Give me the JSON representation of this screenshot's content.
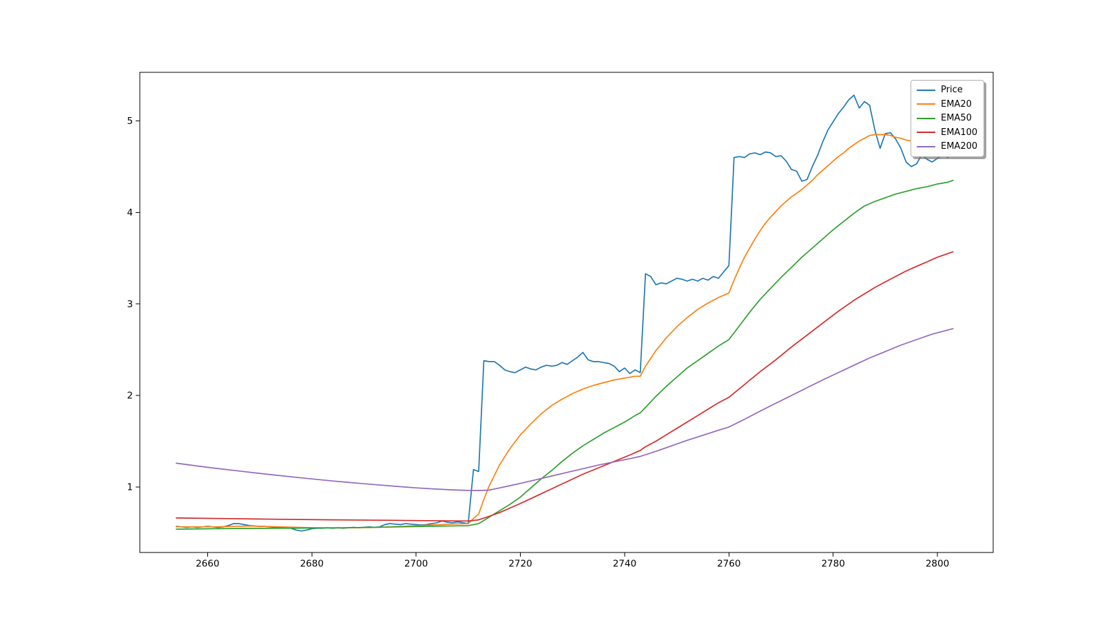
{
  "chart_data": {
    "type": "line",
    "title": "",
    "xlabel": "",
    "ylabel": "",
    "grid": false,
    "background": "#ffffff",
    "spine_color": "#000000",
    "xlim": [
      2647.0,
      2810.7
    ],
    "ylim": [
      0.285,
      5.53
    ],
    "xticks": [
      2660,
      2680,
      2700,
      2720,
      2740,
      2760,
      2780,
      2800
    ],
    "yticks": [
      1,
      2,
      3,
      4,
      5
    ],
    "legend": {
      "position": "upper right"
    },
    "series": [
      {
        "name": "Price",
        "color": "#1f77b4",
        "x_start": 2654,
        "x_step": 1,
        "values": [
          0.57,
          0.565,
          0.56,
          0.565,
          0.56,
          0.565,
          0.57,
          0.565,
          0.56,
          0.565,
          0.58,
          0.6,
          0.6,
          0.59,
          0.58,
          0.575,
          0.57,
          0.57,
          0.565,
          0.56,
          0.56,
          0.555,
          0.55,
          0.53,
          0.52,
          0.53,
          0.545,
          0.55,
          0.55,
          0.555,
          0.55,
          0.555,
          0.55,
          0.555,
          0.56,
          0.555,
          0.56,
          0.565,
          0.56,
          0.565,
          0.59,
          0.6,
          0.595,
          0.59,
          0.6,
          0.595,
          0.59,
          0.585,
          0.59,
          0.6,
          0.61,
          0.63,
          0.615,
          0.61,
          0.62,
          0.61,
          0.6,
          1.19,
          1.17,
          2.38,
          2.37,
          2.37,
          2.33,
          2.28,
          2.26,
          2.25,
          2.28,
          2.31,
          2.29,
          2.28,
          2.31,
          2.33,
          2.32,
          2.33,
          2.36,
          2.34,
          2.38,
          2.42,
          2.47,
          2.39,
          2.37,
          2.37,
          2.36,
          2.35,
          2.32,
          2.26,
          2.3,
          2.24,
          2.28,
          2.25,
          3.33,
          3.3,
          3.21,
          3.23,
          3.22,
          3.25,
          3.28,
          3.27,
          3.25,
          3.27,
          3.25,
          3.28,
          3.26,
          3.3,
          3.28,
          3.35,
          3.42,
          4.6,
          4.61,
          4.6,
          4.64,
          4.65,
          4.63,
          4.66,
          4.65,
          4.61,
          4.62,
          4.56,
          4.47,
          4.45,
          4.34,
          4.36,
          4.5,
          4.62,
          4.77,
          4.9,
          4.99,
          5.08,
          5.15,
          5.23,
          5.28,
          5.14,
          5.21,
          5.17,
          4.9,
          4.7,
          4.86,
          4.87,
          4.8,
          4.7,
          4.55,
          4.5,
          4.53,
          4.63,
          4.58,
          4.55,
          4.59,
          4.63,
          4.6,
          4.66
        ]
      },
      {
        "name": "EMA20",
        "color": "#ff7f0e",
        "points": [
          [
            2654,
            0.565
          ],
          [
            2662,
            0.566
          ],
          [
            2668,
            0.575
          ],
          [
            2674,
            0.565
          ],
          [
            2680,
            0.556
          ],
          [
            2686,
            0.554
          ],
          [
            2692,
            0.558
          ],
          [
            2698,
            0.572
          ],
          [
            2703,
            0.585
          ],
          [
            2707,
            0.596
          ],
          [
            2710,
            0.601
          ],
          [
            2711,
            0.657
          ],
          [
            2712,
            0.706
          ],
          [
            2713,
            0.865
          ],
          [
            2714,
            1.01
          ],
          [
            2716,
            1.24
          ],
          [
            2718,
            1.42
          ],
          [
            2720,
            1.57
          ],
          [
            2722,
            1.69
          ],
          [
            2724,
            1.8
          ],
          [
            2726,
            1.89
          ],
          [
            2728,
            1.96
          ],
          [
            2730,
            2.02
          ],
          [
            2732,
            2.07
          ],
          [
            2734,
            2.11
          ],
          [
            2736,
            2.14
          ],
          [
            2738,
            2.17
          ],
          [
            2740,
            2.19
          ],
          [
            2742,
            2.21
          ],
          [
            2743,
            2.21
          ],
          [
            2744,
            2.32
          ],
          [
            2746,
            2.49
          ],
          [
            2748,
            2.63
          ],
          [
            2750,
            2.75
          ],
          [
            2752,
            2.85
          ],
          [
            2754,
            2.94
          ],
          [
            2756,
            3.01
          ],
          [
            2758,
            3.07
          ],
          [
            2760,
            3.12
          ],
          [
            2761,
            3.26
          ],
          [
            2762,
            3.39
          ],
          [
            2763,
            3.51
          ],
          [
            2764,
            3.61
          ],
          [
            2765,
            3.71
          ],
          [
            2766,
            3.8
          ],
          [
            2767,
            3.88
          ],
          [
            2768,
            3.95
          ],
          [
            2769,
            4.01
          ],
          [
            2770,
            4.07
          ],
          [
            2771,
            4.12
          ],
          [
            2772,
            4.17
          ],
          [
            2773,
            4.21
          ],
          [
            2774,
            4.25
          ],
          [
            2775,
            4.3
          ],
          [
            2776,
            4.35
          ],
          [
            2777,
            4.41
          ],
          [
            2778,
            4.46
          ],
          [
            2779,
            4.51
          ],
          [
            2780,
            4.56
          ],
          [
            2781,
            4.61
          ],
          [
            2782,
            4.65
          ],
          [
            2783,
            4.7
          ],
          [
            2784,
            4.74
          ],
          [
            2785,
            4.78
          ],
          [
            2786,
            4.81
          ],
          [
            2787,
            4.84
          ],
          [
            2788,
            4.85
          ],
          [
            2789,
            4.85
          ],
          [
            2790,
            4.85
          ],
          [
            2791,
            4.84
          ],
          [
            2792,
            4.82
          ],
          [
            2793,
            4.81
          ],
          [
            2794,
            4.79
          ],
          [
            2795,
            4.78
          ],
          [
            2797,
            4.77
          ],
          [
            2799,
            4.76
          ],
          [
            2801,
            4.77
          ],
          [
            2803,
            4.78
          ]
        ]
      },
      {
        "name": "EMA50",
        "color": "#2ca02c",
        "points": [
          [
            2654,
            0.54
          ],
          [
            2662,
            0.545
          ],
          [
            2670,
            0.549
          ],
          [
            2678,
            0.551
          ],
          [
            2686,
            0.555
          ],
          [
            2694,
            0.562
          ],
          [
            2702,
            0.571
          ],
          [
            2708,
            0.576
          ],
          [
            2710,
            0.578
          ],
          [
            2712,
            0.6
          ],
          [
            2714,
            0.67
          ],
          [
            2716,
            0.74
          ],
          [
            2718,
            0.81
          ],
          [
            2720,
            0.89
          ],
          [
            2722,
            0.99
          ],
          [
            2724,
            1.09
          ],
          [
            2726,
            1.18
          ],
          [
            2728,
            1.28
          ],
          [
            2730,
            1.37
          ],
          [
            2732,
            1.45
          ],
          [
            2734,
            1.52
          ],
          [
            2736,
            1.59
          ],
          [
            2738,
            1.65
          ],
          [
            2740,
            1.71
          ],
          [
            2742,
            1.78
          ],
          [
            2743,
            1.81
          ],
          [
            2744,
            1.87
          ],
          [
            2746,
            1.99
          ],
          [
            2748,
            2.1
          ],
          [
            2750,
            2.2
          ],
          [
            2752,
            2.3
          ],
          [
            2754,
            2.38
          ],
          [
            2756,
            2.46
          ],
          [
            2758,
            2.54
          ],
          [
            2760,
            2.61
          ],
          [
            2762,
            2.76
          ],
          [
            2764,
            2.91
          ],
          [
            2766,
            3.05
          ],
          [
            2768,
            3.17
          ],
          [
            2770,
            3.29
          ],
          [
            2772,
            3.4
          ],
          [
            2774,
            3.51
          ],
          [
            2776,
            3.61
          ],
          [
            2778,
            3.71
          ],
          [
            2780,
            3.81
          ],
          [
            2782,
            3.9
          ],
          [
            2784,
            3.99
          ],
          [
            2786,
            4.07
          ],
          [
            2788,
            4.12
          ],
          [
            2790,
            4.16
          ],
          [
            2792,
            4.2
          ],
          [
            2794,
            4.23
          ],
          [
            2796,
            4.26
          ],
          [
            2798,
            4.28
          ],
          [
            2800,
            4.31
          ],
          [
            2802,
            4.33
          ],
          [
            2803,
            4.35
          ]
        ]
      },
      {
        "name": "EMA100",
        "color": "#d62728",
        "points": [
          [
            2654,
            0.662
          ],
          [
            2664,
            0.655
          ],
          [
            2674,
            0.648
          ],
          [
            2684,
            0.642
          ],
          [
            2694,
            0.637
          ],
          [
            2702,
            0.633
          ],
          [
            2708,
            0.63
          ],
          [
            2710,
            0.629
          ],
          [
            2712,
            0.642
          ],
          [
            2714,
            0.68
          ],
          [
            2716,
            0.72
          ],
          [
            2718,
            0.77
          ],
          [
            2720,
            0.82
          ],
          [
            2723,
            0.9
          ],
          [
            2726,
            0.98
          ],
          [
            2729,
            1.06
          ],
          [
            2732,
            1.14
          ],
          [
            2735,
            1.21
          ],
          [
            2738,
            1.28
          ],
          [
            2741,
            1.35
          ],
          [
            2743,
            1.4
          ],
          [
            2744,
            1.44
          ],
          [
            2746,
            1.5
          ],
          [
            2748,
            1.57
          ],
          [
            2750,
            1.64
          ],
          [
            2752,
            1.71
          ],
          [
            2754,
            1.78
          ],
          [
            2756,
            1.85
          ],
          [
            2758,
            1.92
          ],
          [
            2760,
            1.98
          ],
          [
            2763,
            2.12
          ],
          [
            2766,
            2.26
          ],
          [
            2769,
            2.39
          ],
          [
            2772,
            2.53
          ],
          [
            2775,
            2.66
          ],
          [
            2778,
            2.79
          ],
          [
            2781,
            2.92
          ],
          [
            2784,
            3.04
          ],
          [
            2786,
            3.11
          ],
          [
            2788,
            3.18
          ],
          [
            2790,
            3.24
          ],
          [
            2792,
            3.3
          ],
          [
            2794,
            3.36
          ],
          [
            2796,
            3.41
          ],
          [
            2798,
            3.46
          ],
          [
            2800,
            3.51
          ],
          [
            2802,
            3.55
          ],
          [
            2803,
            3.57
          ]
        ]
      },
      {
        "name": "EMA200",
        "color": "#9467bd",
        "points": [
          [
            2654,
            1.26
          ],
          [
            2660,
            1.215
          ],
          [
            2666,
            1.175
          ],
          [
            2672,
            1.136
          ],
          [
            2678,
            1.1
          ],
          [
            2684,
            1.066
          ],
          [
            2690,
            1.036
          ],
          [
            2696,
            1.008
          ],
          [
            2700,
            0.991
          ],
          [
            2704,
            0.977
          ],
          [
            2707,
            0.969
          ],
          [
            2710,
            0.963
          ],
          [
            2712,
            0.962
          ],
          [
            2714,
            0.966
          ],
          [
            2716,
            0.99
          ],
          [
            2718,
            1.015
          ],
          [
            2720,
            1.04
          ],
          [
            2723,
            1.08
          ],
          [
            2726,
            1.12
          ],
          [
            2729,
            1.16
          ],
          [
            2732,
            1.2
          ],
          [
            2735,
            1.24
          ],
          [
            2738,
            1.275
          ],
          [
            2741,
            1.31
          ],
          [
            2743,
            1.335
          ],
          [
            2746,
            1.39
          ],
          [
            2749,
            1.45
          ],
          [
            2752,
            1.51
          ],
          [
            2755,
            1.565
          ],
          [
            2758,
            1.62
          ],
          [
            2760,
            1.655
          ],
          [
            2763,
            1.74
          ],
          [
            2766,
            1.83
          ],
          [
            2769,
            1.915
          ],
          [
            2772,
            2.0
          ],
          [
            2775,
            2.085
          ],
          [
            2778,
            2.17
          ],
          [
            2781,
            2.25
          ],
          [
            2784,
            2.33
          ],
          [
            2787,
            2.41
          ],
          [
            2790,
            2.48
          ],
          [
            2793,
            2.55
          ],
          [
            2796,
            2.61
          ],
          [
            2799,
            2.67
          ],
          [
            2801,
            2.7
          ],
          [
            2803,
            2.73
          ]
        ]
      }
    ]
  }
}
